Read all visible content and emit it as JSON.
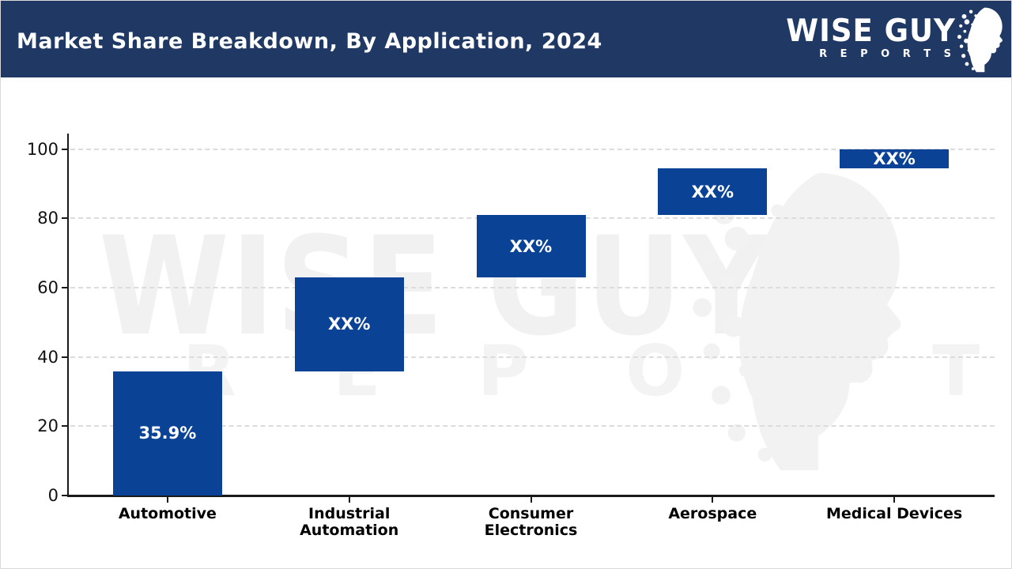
{
  "header": {
    "title": "Market Share Breakdown, By Application, 2024",
    "bg_color": "#1f3864",
    "logo": {
      "line1": "WISE GUY",
      "line2": "R E P O R T S"
    }
  },
  "watermark": {
    "line1": "WISE GUY",
    "line2": "R E P O R T S"
  },
  "colors": {
    "header_navy": "#1f3864",
    "bar_blue": "#0a4296",
    "axis_black": "#1a1a1a",
    "grid_gray": "#dcdcdc",
    "page_border_gray": "#d9d9d9"
  },
  "chart_data": {
    "type": "bar",
    "subtype": "waterfall",
    "title": "Market Share Breakdown, By Application, 2024",
    "xlabel": "",
    "ylabel": "",
    "categories": [
      "Automotive",
      "Industrial\nAutomation",
      "Consumer\nElectronics",
      "Aerospace",
      "Medical Devices"
    ],
    "segments": [
      {
        "category": "Automotive",
        "start": 0,
        "end": 35.9,
        "label": "35.9%"
      },
      {
        "category": "Industrial Automation",
        "start": 35.9,
        "end": 62.9,
        "label": "XX%"
      },
      {
        "category": "Consumer Electronics",
        "start": 62.9,
        "end": 80.9,
        "label": "XX%"
      },
      {
        "category": "Aerospace",
        "start": 80.9,
        "end": 94.3,
        "label": "XX%"
      },
      {
        "category": "Medical Devices",
        "start": 94.3,
        "end": 100,
        "label": "XX%"
      }
    ],
    "bar_color": "#0a4296",
    "bar_label_color": "#ffffff",
    "yticks": [
      0,
      20,
      40,
      60,
      80,
      100
    ],
    "ylim": [
      0,
      104.5
    ],
    "grid": "horizontal dashed",
    "legend": "none"
  }
}
